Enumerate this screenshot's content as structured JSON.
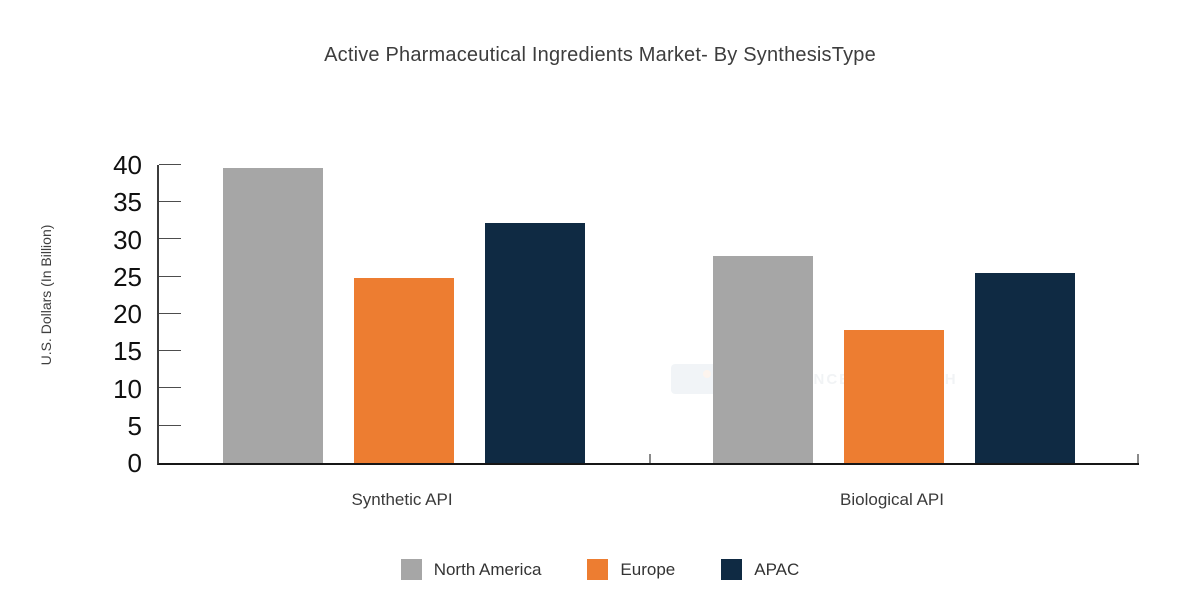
{
  "chart_data": {
    "type": "bar",
    "title": "Active Pharmaceutical Ingredients Market- By SynthesisType",
    "ylabel": "U.S. Dollars (In Billion)",
    "xlabel": "",
    "categories": [
      "Synthetic API",
      "Biological API"
    ],
    "series": [
      {
        "name": "North America",
        "color": "#a6a6a6",
        "values": [
          39.6,
          27.8
        ]
      },
      {
        "name": "Europe",
        "color": "#ed7d31",
        "values": [
          24.8,
          17.8
        ]
      },
      {
        "name": "APAC",
        "color": "#0f2a43",
        "values": [
          32.2,
          25.5
        ]
      }
    ],
    "ylim": [
      0,
      40
    ],
    "yticks": [
      0,
      5,
      10,
      15,
      20,
      25,
      30,
      35,
      40
    ],
    "grid": false,
    "legend_position": "bottom"
  },
  "watermark": {
    "text": "PRECEDENCE RESEARCH"
  }
}
